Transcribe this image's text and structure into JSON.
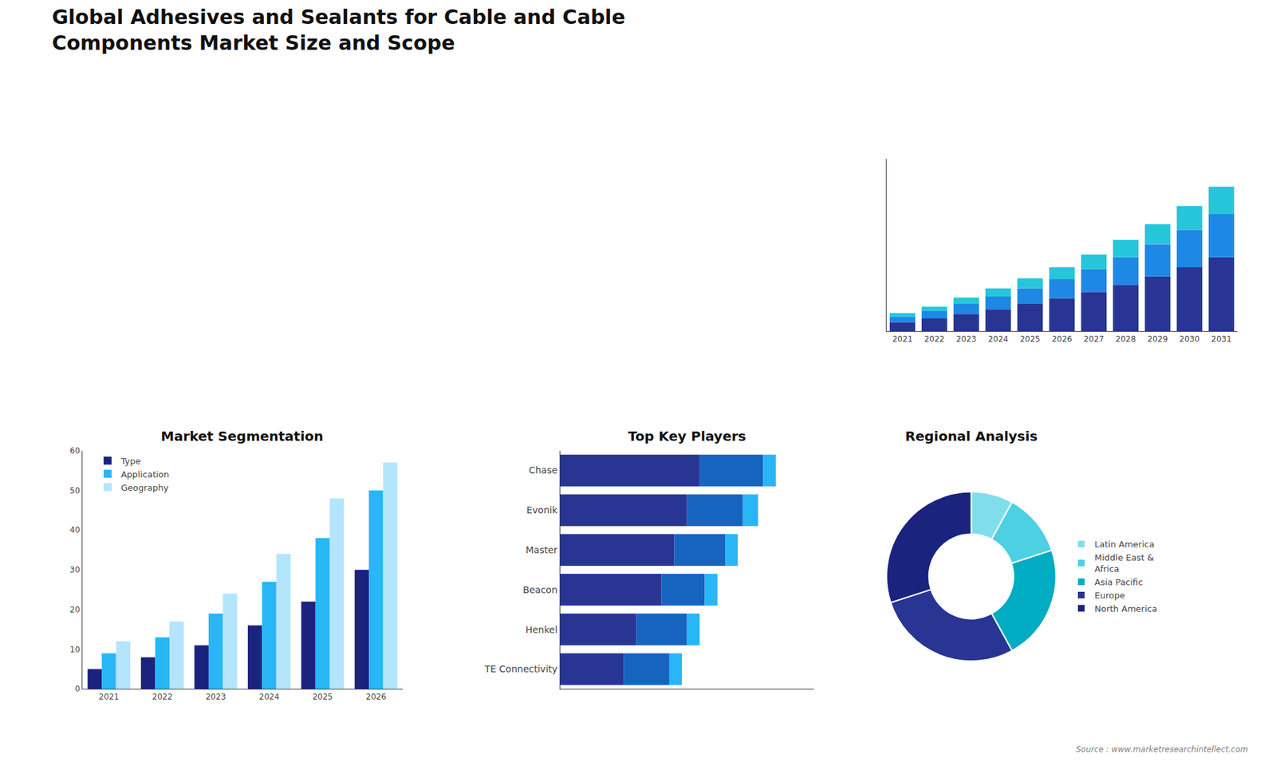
{
  "title": "Global Adhesives and Sealants for Cable and Cable\nComponents Market Size and Scope",
  "annotations": [
    "Source : www.marketresearchintellect.com"
  ],
  "chart_data": [
    {
      "type": "bar",
      "stacked": true,
      "categories": [
        "2021",
        "2022",
        "2023",
        "2024",
        "2025",
        "2026",
        "2027",
        "2028",
        "2029",
        "2030",
        "2031"
      ],
      "series": [
        {
          "color": "#283593",
          "values": [
            1.0,
            1.4,
            1.9,
            2.4,
            3.0,
            3.6,
            4.3,
            5.1,
            6.0,
            7.0,
            8.1
          ]
        },
        {
          "color": "#1e88e5",
          "values": [
            0.6,
            0.8,
            1.1,
            1.4,
            1.7,
            2.1,
            2.5,
            3.0,
            3.5,
            4.1,
            4.7
          ]
        },
        {
          "color": "#26c6da",
          "values": [
            0.4,
            0.5,
            0.7,
            0.9,
            1.1,
            1.3,
            1.6,
            1.9,
            2.2,
            2.6,
            3.0
          ]
        }
      ],
      "ylim": [
        0,
        18.8
      ],
      "grid": false,
      "tick_labels": "x"
    },
    {
      "type": "bar",
      "title": "Market Segmentation",
      "categories": [
        "2021",
        "2022",
        "2023",
        "2024",
        "2025",
        "2026"
      ],
      "series": [
        {
          "name": "Type",
          "color": "#1a237e",
          "values": [
            5,
            8,
            11,
            16,
            22,
            30
          ]
        },
        {
          "name": "Application",
          "color": "#29b6f6",
          "values": [
            9,
            13,
            19,
            27,
            38,
            50
          ]
        },
        {
          "name": "Geography",
          "color": "#b3e5fc",
          "values": [
            12,
            17,
            24,
            34,
            48,
            57
          ]
        }
      ],
      "ylim": [
        0,
        60
      ],
      "yticks": [
        0,
        10,
        20,
        30,
        40,
        50,
        60
      ],
      "legend": "upper left",
      "grid": false
    },
    {
      "type": "bar",
      "title": "Top Key Players",
      "orientation": "horizontal",
      "stacked": true,
      "categories": [
        "Chase",
        "Evonik",
        "Master",
        "Beacon",
        "Henkel",
        "TE Connectivity"
      ],
      "series": [
        {
          "color": "#283593",
          "values": [
            55,
            50,
            45,
            40,
            30,
            25
          ]
        },
        {
          "color": "#1565c0",
          "values": [
            25,
            22,
            20,
            17,
            20,
            18
          ]
        },
        {
          "color": "#29b6f6",
          "values": [
            5,
            6,
            5,
            5,
            5,
            5
          ]
        }
      ],
      "xlim": [
        0,
        100
      ],
      "grid": false,
      "tick_labels": "y"
    },
    {
      "type": "pie",
      "title": "Regional Analysis",
      "categories": [
        "Latin America",
        "Middle East &\nAfrica",
        "Asia Pacific",
        "Europe",
        "North America"
      ],
      "values": [
        8,
        12,
        22,
        28,
        30
      ],
      "colors": [
        "#80deea",
        "#4dd0e1",
        "#00acc1",
        "#283593",
        "#1a237e"
      ],
      "legend": "right"
    }
  ]
}
